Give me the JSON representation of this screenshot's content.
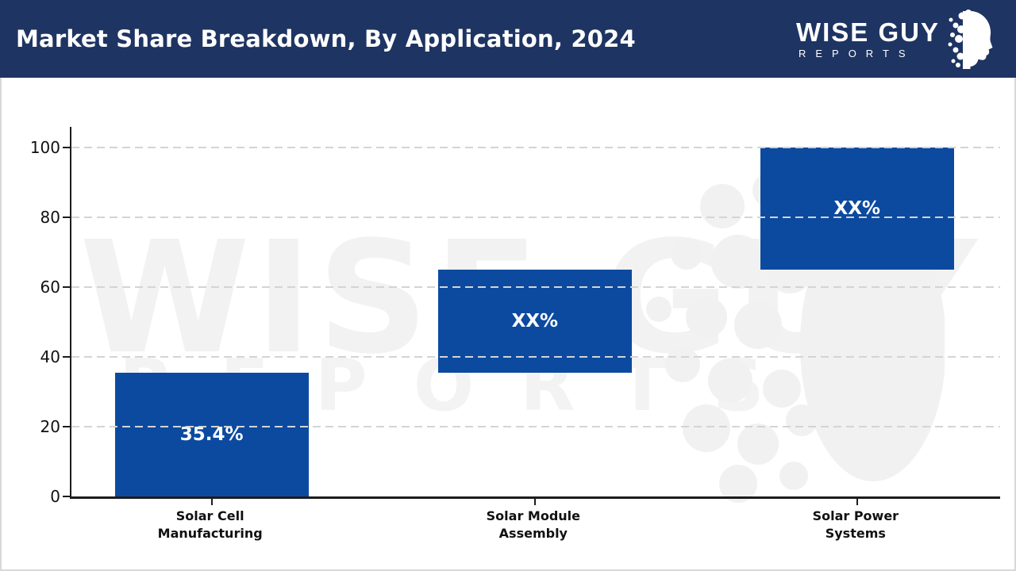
{
  "header": {
    "title": "Market Share Breakdown, By Application, 2024",
    "logo": {
      "line1": "WISE GUY",
      "line2": "REPORTS"
    }
  },
  "watermark": {
    "line1": "WISE GUY",
    "line2": "REPORTS"
  },
  "colors": {
    "header_bg": "#1e3462",
    "bar": "#0c4aa0",
    "grid": "#d4d4d4",
    "axis": "#1c1c1c",
    "value_label_text": "#ffffff",
    "watermark": "#f2f2f2"
  },
  "chart_data": {
    "type": "bar",
    "subtype": "floating-segment-waterfall",
    "title": "Market Share Breakdown, By Application, 2024",
    "categories": [
      "Solar Cell\nManufacturing",
      "Solar Module\nAssembly",
      "Solar Power\nSystems"
    ],
    "segments": [
      {
        "category": "Solar Cell Manufacturing",
        "start": 0,
        "end": 35.4,
        "label": "35.4%"
      },
      {
        "category": "Solar Module Assembly",
        "start": 35.4,
        "end": 65,
        "label": "XX%"
      },
      {
        "category": "Solar Power Systems",
        "start": 65,
        "end": 100,
        "label": "XX%"
      }
    ],
    "yticks": [
      0,
      20,
      40,
      60,
      80,
      100
    ],
    "ylim": [
      0,
      106
    ],
    "xlabel": "",
    "ylabel": "",
    "grid": "horizontal-dashed",
    "legend": "none",
    "bar_color": "#0c4aa0"
  }
}
